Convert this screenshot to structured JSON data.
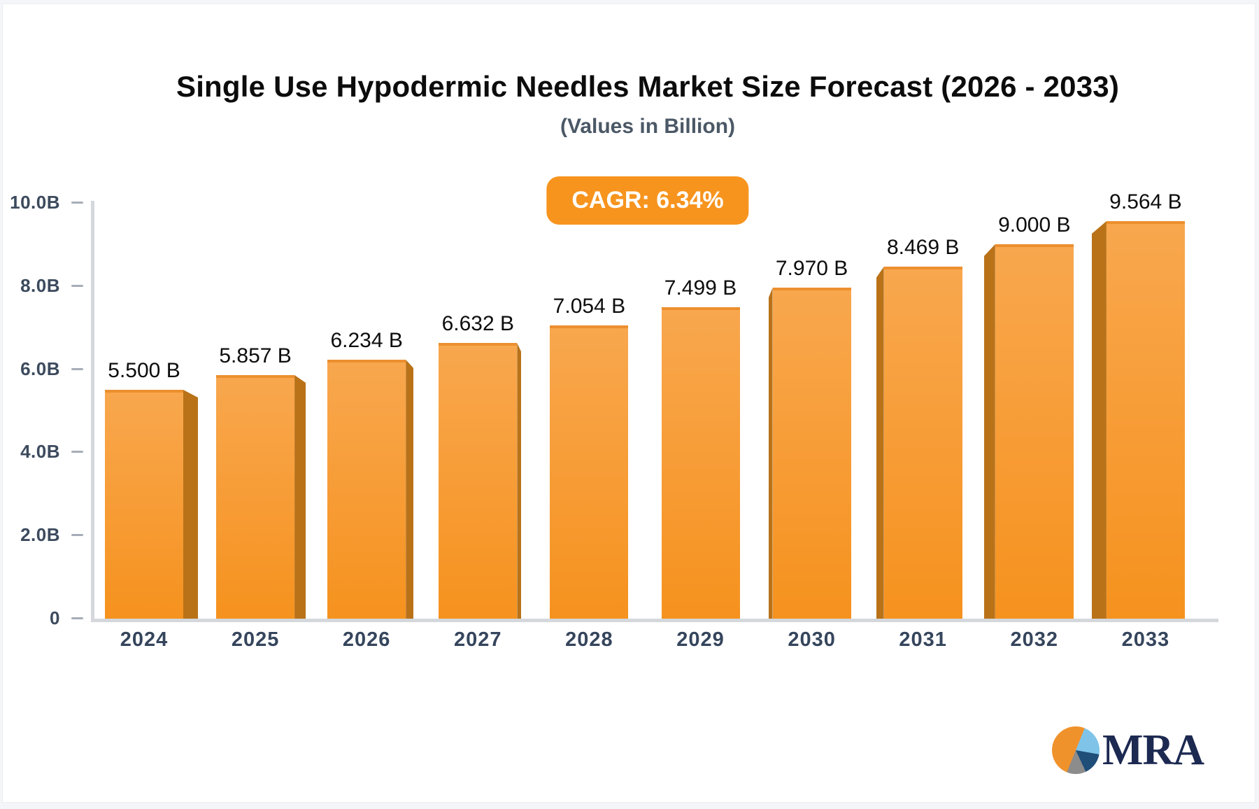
{
  "chart_data": {
    "type": "bar",
    "title": "Single Use Hypodermic Needles Market Size Forecast (2026 - 2033)",
    "subtitle": "(Values in Billion)",
    "annotation": "CAGR: 6.34%",
    "categories": [
      "2024",
      "2025",
      "2026",
      "2027",
      "2028",
      "2029",
      "2030",
      "2031",
      "2032",
      "2033"
    ],
    "values": [
      5.5,
      5.857,
      6.234,
      6.632,
      7.054,
      7.499,
      7.97,
      8.469,
      9.0,
      9.564
    ],
    "value_labels": [
      "5.500 B",
      "5.857 B",
      "6.234 B",
      "6.632 B",
      "7.054 B",
      "7.499 B",
      "7.970 B",
      "8.469 B",
      "9.000 B",
      "9.564 B"
    ],
    "ylabel": "",
    "xlabel": "",
    "ylim": [
      0,
      10
    ],
    "yticks": [
      {
        "value": 10,
        "label": "10.0B"
      },
      {
        "value": 8,
        "label": "8.0B"
      },
      {
        "value": 6,
        "label": "6.0B"
      },
      {
        "value": 4,
        "label": "4.0B"
      },
      {
        "value": 2,
        "label": "2.0B"
      },
      {
        "value": 0,
        "label": "0"
      }
    ],
    "grid": false,
    "legend": "none",
    "colors": {
      "bar_face_top": "#f8a74e",
      "bar_face_bottom": "#f6921e",
      "bar_top_stroke": "#ec8f2e",
      "bar_side": "#b97218",
      "badge_bg": "#f7941e",
      "badge_text": "#ffffff",
      "axis_line": "#d4d7dc",
      "tick_dash": "#a7adb8",
      "axis_label": "#3c4a5d",
      "title": "#0c0c0c",
      "subtitle": "#4b5866",
      "value_label": "#0d0d0d"
    }
  },
  "logo": {
    "text": "MRA",
    "text_color": "#1c2951",
    "pie_slices": [
      {
        "name": "orange",
        "color": "#f0922b",
        "from": 202,
        "to": 382
      },
      {
        "name": "light-blue",
        "color": "#7fc4e8",
        "from": 22,
        "to": 100
      },
      {
        "name": "navy",
        "color": "#1f4e79",
        "from": 100,
        "to": 155
      },
      {
        "name": "gray",
        "color": "#8c8c8c",
        "from": 155,
        "to": 202
      }
    ]
  }
}
